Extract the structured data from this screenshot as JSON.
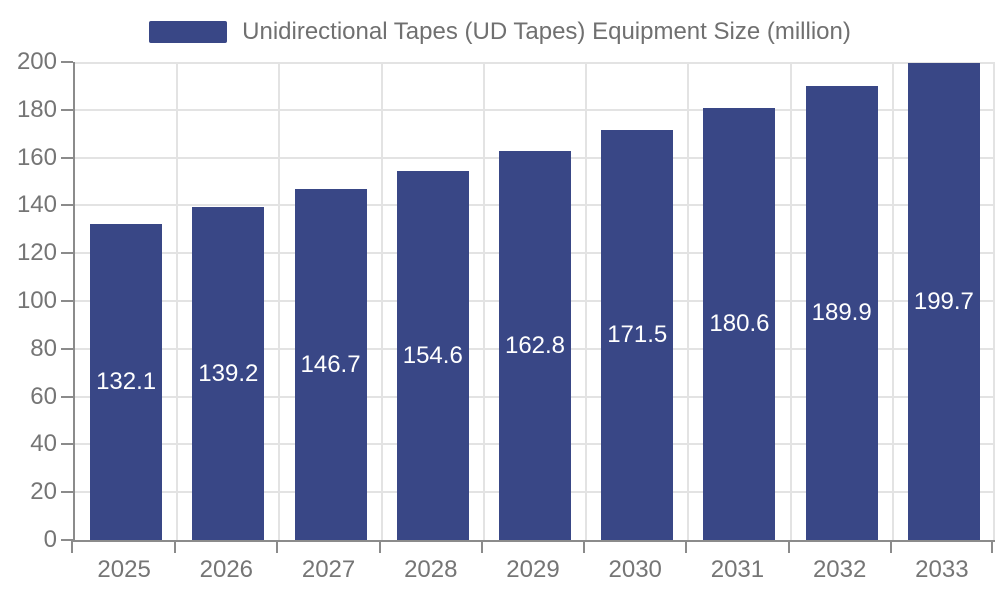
{
  "legend": {
    "label": "Unidirectional Tapes (UD Tapes) Equipment Size (million)"
  },
  "chart_data": {
    "type": "bar",
    "title": "Unidirectional Tapes (UD Tapes) Equipment Size (million)",
    "categories": [
      "2025",
      "2026",
      "2027",
      "2028",
      "2029",
      "2030",
      "2031",
      "2032",
      "2033"
    ],
    "values": [
      132.1,
      139.2,
      146.7,
      154.6,
      162.8,
      171.5,
      180.6,
      189.9,
      199.7
    ],
    "series_name": "Unidirectional Tapes (UD Tapes) Equipment Size (million)",
    "xlabel": "",
    "ylabel": "",
    "ylim": [
      0,
      200
    ],
    "ytick_step": 20,
    "grid": true,
    "legend_position": "top-center",
    "value_labels": "inside-center",
    "colors": {
      "bar": "#394786",
      "value_label": "#ffffff",
      "axis_line": "#8b8b8b",
      "gridline": "#e3e3e3",
      "tick_text": "#757575",
      "legend_text": "#707070",
      "background": "#ffffff"
    }
  }
}
